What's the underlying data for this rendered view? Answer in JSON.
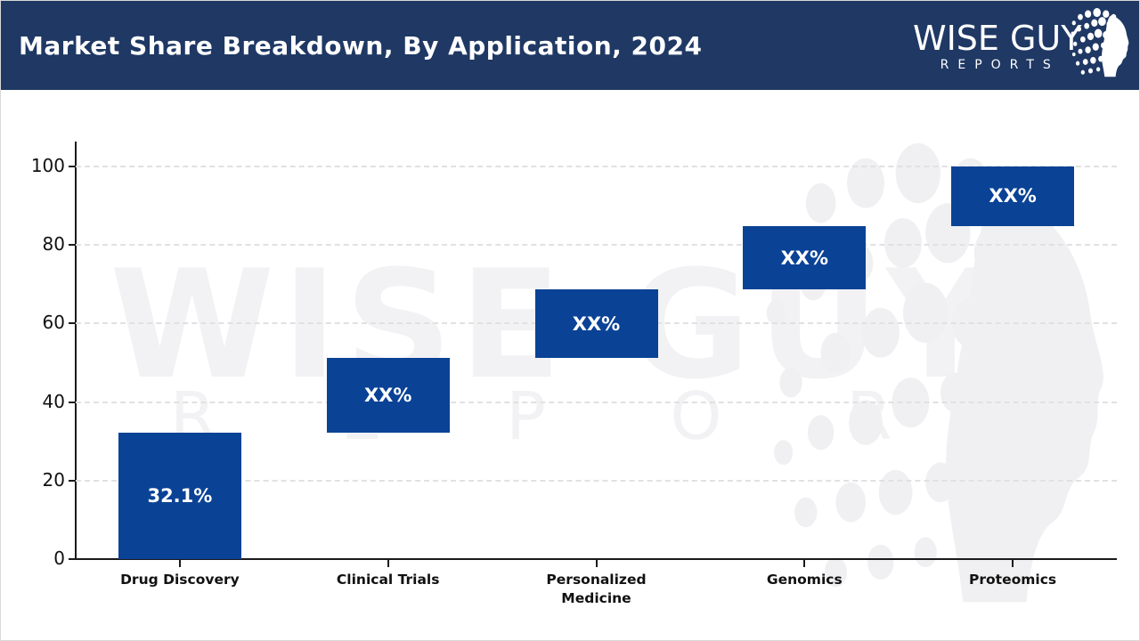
{
  "header": {
    "title": "Market Share Breakdown, By Application, 2024",
    "logo": {
      "line1": "WISE GUY",
      "line2": "REPORTS"
    }
  },
  "watermark": {
    "line1": "WISE GUY",
    "line2": "R E P O R T S"
  },
  "colors": {
    "header_bg": "#1f3864",
    "bar": "#0a4296",
    "grid": "#e1e1e1",
    "axis": "#1a1a1a",
    "watermark": "#f2f2f4"
  },
  "chart_data": {
    "type": "bar",
    "subtype": "waterfall-floating-bars",
    "title": "Market Share Breakdown, By Application, 2024",
    "categories": [
      "Drug Discovery",
      "Clinical Trials",
      "Personalized Medicine",
      "Genomics",
      "Proteomics"
    ],
    "segments": [
      [
        0,
        32.1
      ],
      [
        32.1,
        51.3
      ],
      [
        51.3,
        68.6
      ],
      [
        68.6,
        84.9
      ],
      [
        84.9,
        100
      ]
    ],
    "bar_labels": [
      "32.1%",
      "XX%",
      "XX%",
      "XX%",
      "XX%"
    ],
    "xlabel": "",
    "ylabel": "",
    "ylim": [
      0,
      100
    ],
    "yticks": [
      0,
      20,
      40,
      60,
      80,
      100
    ],
    "grid": "horizontal dashed",
    "legend": "none",
    "bar_color": "#0a4296"
  }
}
